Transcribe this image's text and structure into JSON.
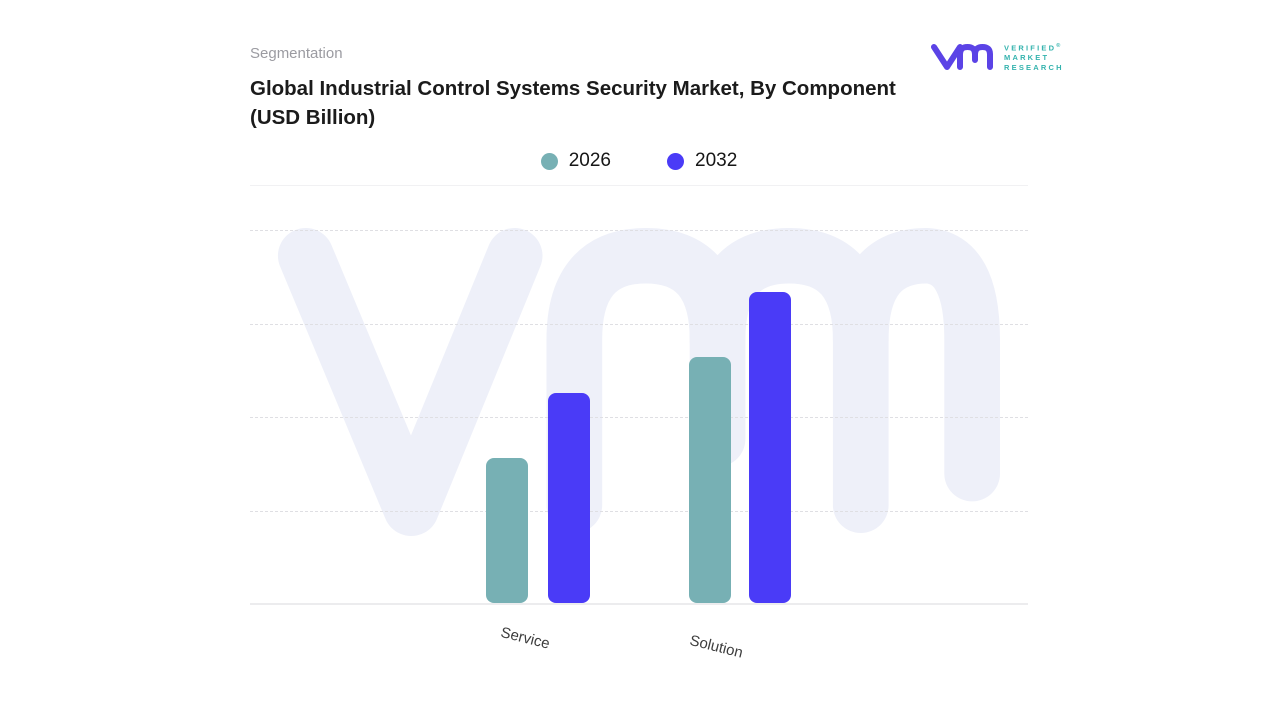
{
  "header": {
    "eyebrow": "Segmentation",
    "title": "Global Industrial Control Systems Security Market, By Component (USD Billion)"
  },
  "logo": {
    "lines": [
      "VERIFIED",
      "MARKET",
      "RESEARCH"
    ],
    "registered": "®",
    "mark_color": "#5b43e6",
    "text_color": "#34b3ae"
  },
  "legend": {
    "items": [
      {
        "label": "2026",
        "color": "#77b0b4"
      },
      {
        "label": "2032",
        "color": "#4a3bf7"
      }
    ]
  },
  "chart_data": {
    "type": "bar",
    "title": "Global Industrial Control Systems Security Market, By Component (USD Billion)",
    "categories": [
      "Service",
      "Solution"
    ],
    "series": [
      {
        "name": "2026",
        "color": "#77b0b4",
        "values": [
          1.55,
          2.63
        ]
      },
      {
        "name": "2032",
        "color": "#4a3bf7",
        "values": [
          2.25,
          3.33
        ]
      }
    ],
    "xlabel": "",
    "ylabel": "",
    "ylim": [
      0,
      4
    ],
    "y_axis_labels_visible": false,
    "grid": "4 horizontal dashed gridlines, unlabeled",
    "legend_position": "top-center",
    "units": "USD Billion; axis has no tick labels, series values estimated in gridline units",
    "watermark": "vmr logo watermark behind plot",
    "watermark_color": "#eef0f9"
  }
}
